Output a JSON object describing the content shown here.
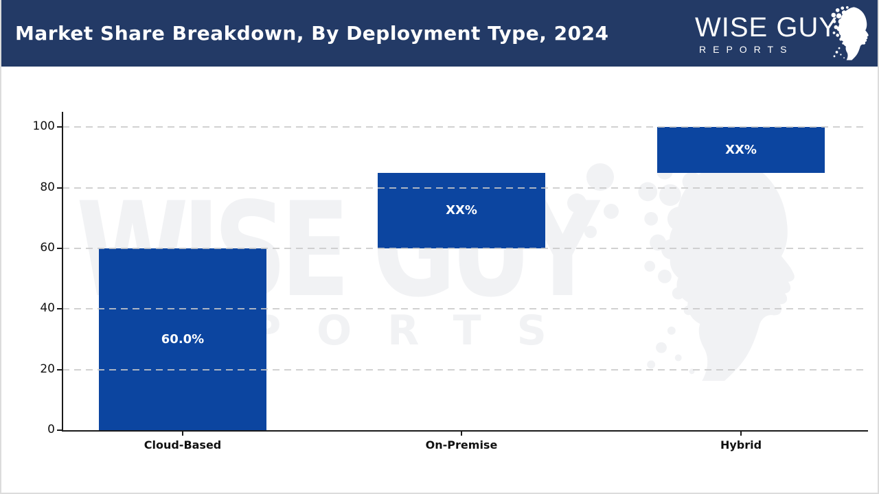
{
  "header": {
    "title": "Market Share Breakdown, By Deployment Type, 2024",
    "logo_line1": "WISE GUY",
    "logo_line2": "REPORTS"
  },
  "watermark": {
    "line1": "WISE GUY",
    "line2": "REPORTS"
  },
  "chart_data": {
    "type": "bar",
    "variant": "waterfall-breakdown",
    "title": "Market Share Breakdown, By Deployment Type, 2024",
    "categories": [
      "Cloud-Based",
      "On-Premise",
      "Hybrid"
    ],
    "segments": [
      {
        "category": "Cloud-Based",
        "from": 0,
        "to": 60,
        "label": "60.0%"
      },
      {
        "category": "On-Premise",
        "from": 60,
        "to": 85,
        "label": "XX%"
      },
      {
        "category": "Hybrid",
        "from": 85,
        "to": 100,
        "label": "XX%"
      }
    ],
    "yticks": [
      0,
      20,
      40,
      60,
      80,
      100
    ],
    "ylim": [
      0,
      105
    ],
    "xlabel": "",
    "ylabel": "",
    "grid": {
      "axis": "y",
      "style": "dashed",
      "color": "#c9c9c9"
    },
    "legend": null,
    "bar_color": "#0c45a0",
    "bar_label_color": "#ffffff"
  },
  "colors": {
    "header_bg": "#233a66",
    "bar": "#0c45a0",
    "axis": "#1a1a1a",
    "grid": "#c9c9c9",
    "watermark": "#f1f2f4",
    "page_border": "#dcdcdc",
    "title_text": "#ffffff"
  }
}
